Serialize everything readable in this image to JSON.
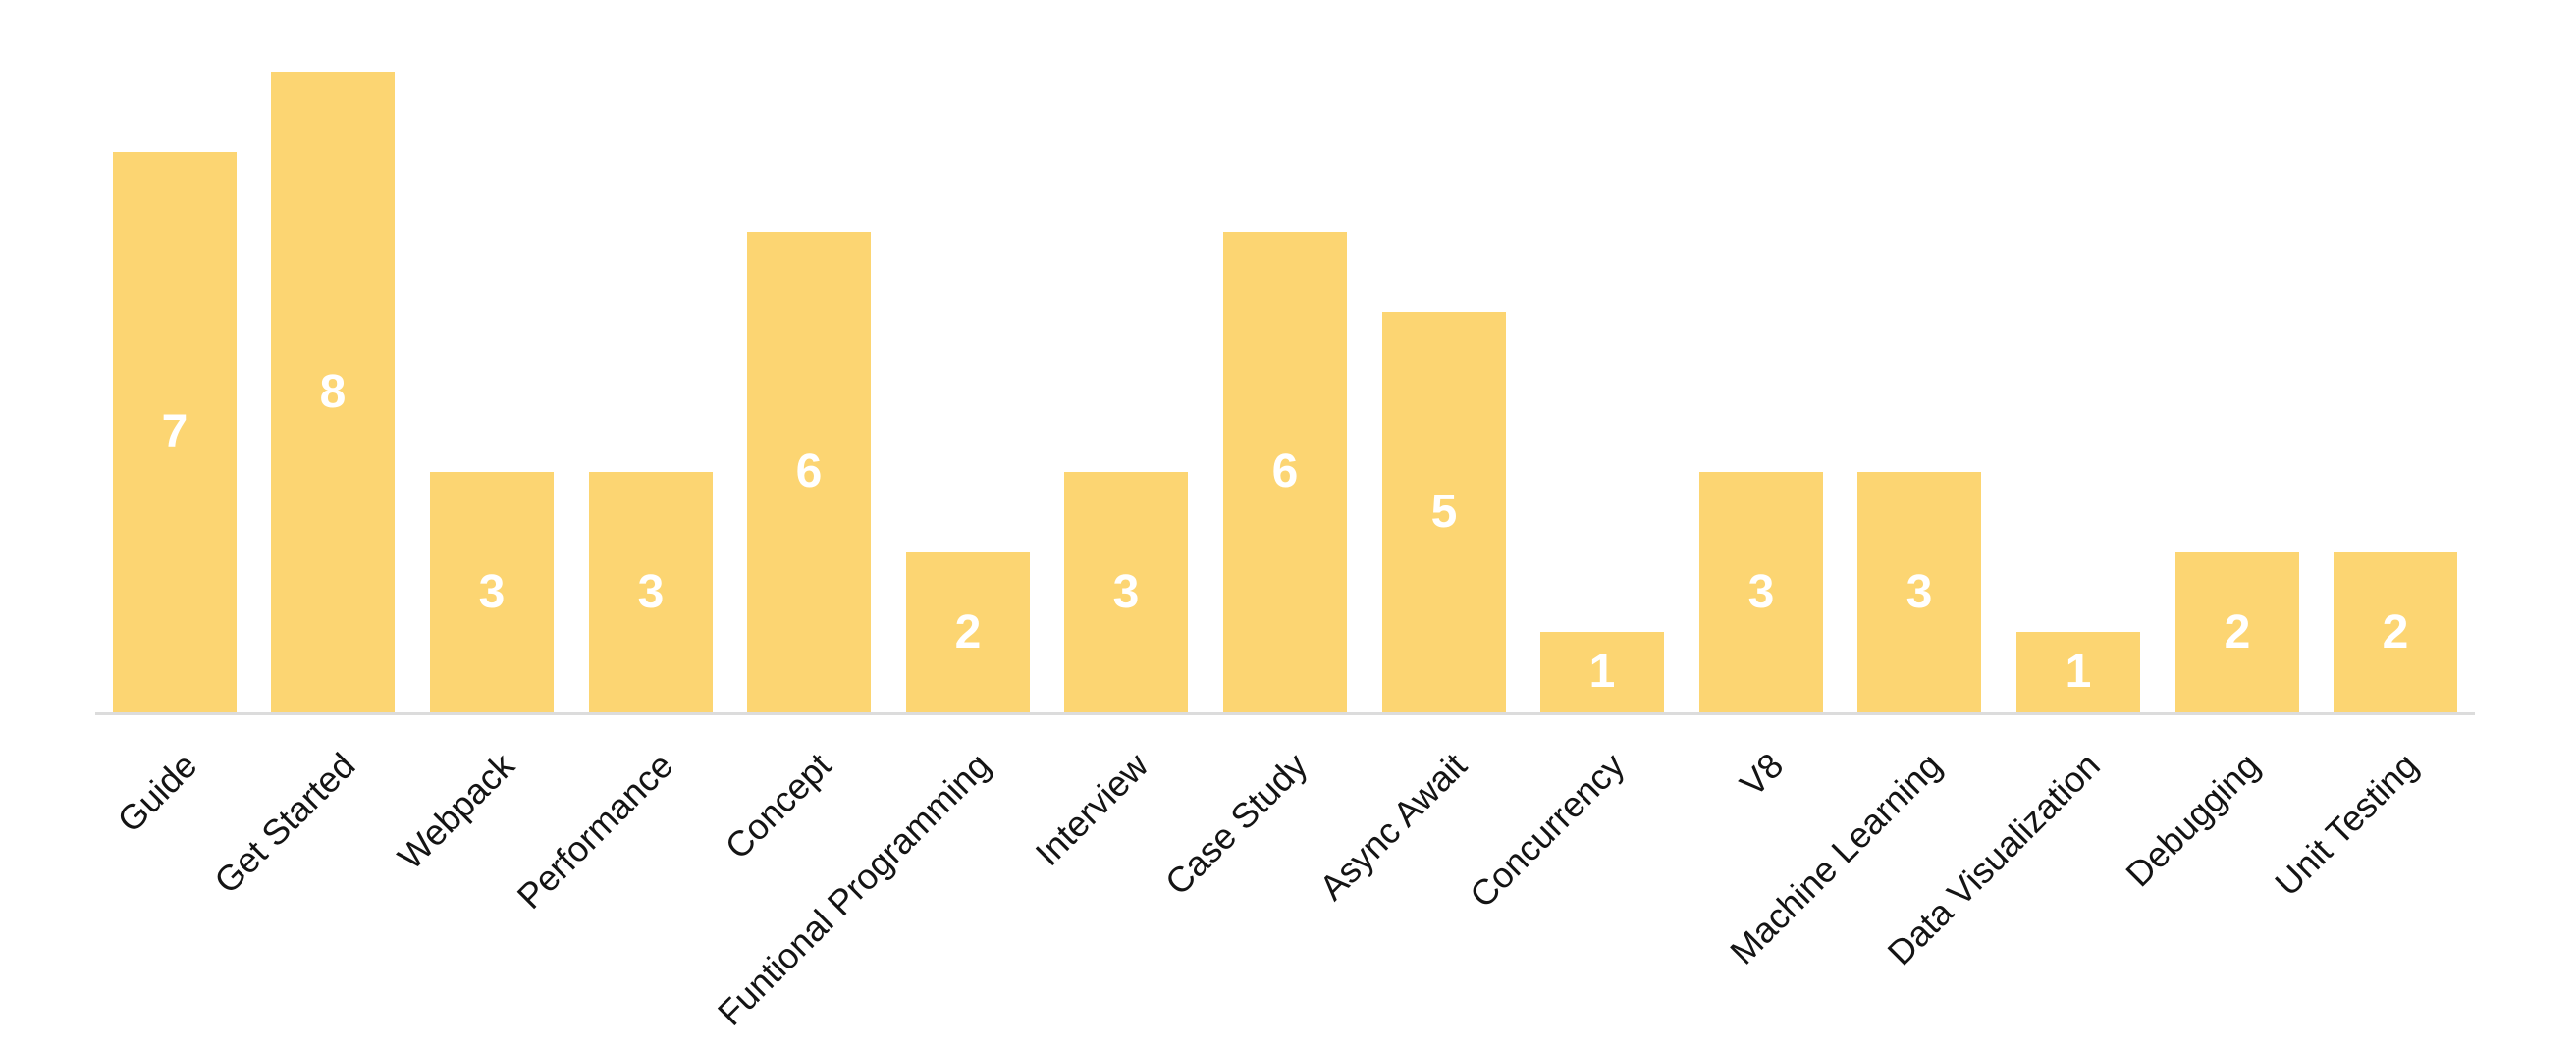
{
  "chart_data": {
    "type": "bar",
    "title": "",
    "xlabel": "",
    "ylabel": "",
    "categories": [
      "Guide",
      "Get Started",
      "Webpack",
      "Performance",
      "Concept",
      "Funtional Programming",
      "Interview",
      "Case Study",
      "Async Await",
      "Concurrency",
      "V8",
      "Machine Learning",
      "Data Visualization",
      "Debugging",
      "Unit Testing"
    ],
    "values": [
      7,
      8,
      3,
      3,
      6,
      2,
      3,
      6,
      5,
      1,
      3,
      3,
      1,
      2,
      2
    ],
    "ylim": [
      0,
      8.9
    ],
    "grid": "off",
    "legend": "none",
    "y_axis_visible": false,
    "x_axis_visible": true,
    "value_label_position": "inside-center",
    "x_tick_rotation_deg": 45,
    "style": {
      "bar_color": "#FCD572",
      "value_label_color": "#FFFFFF",
      "axis_line_color": "#DCDCDC",
      "tick_label_color": "#141414",
      "background_color": "#FFFFFF"
    }
  }
}
